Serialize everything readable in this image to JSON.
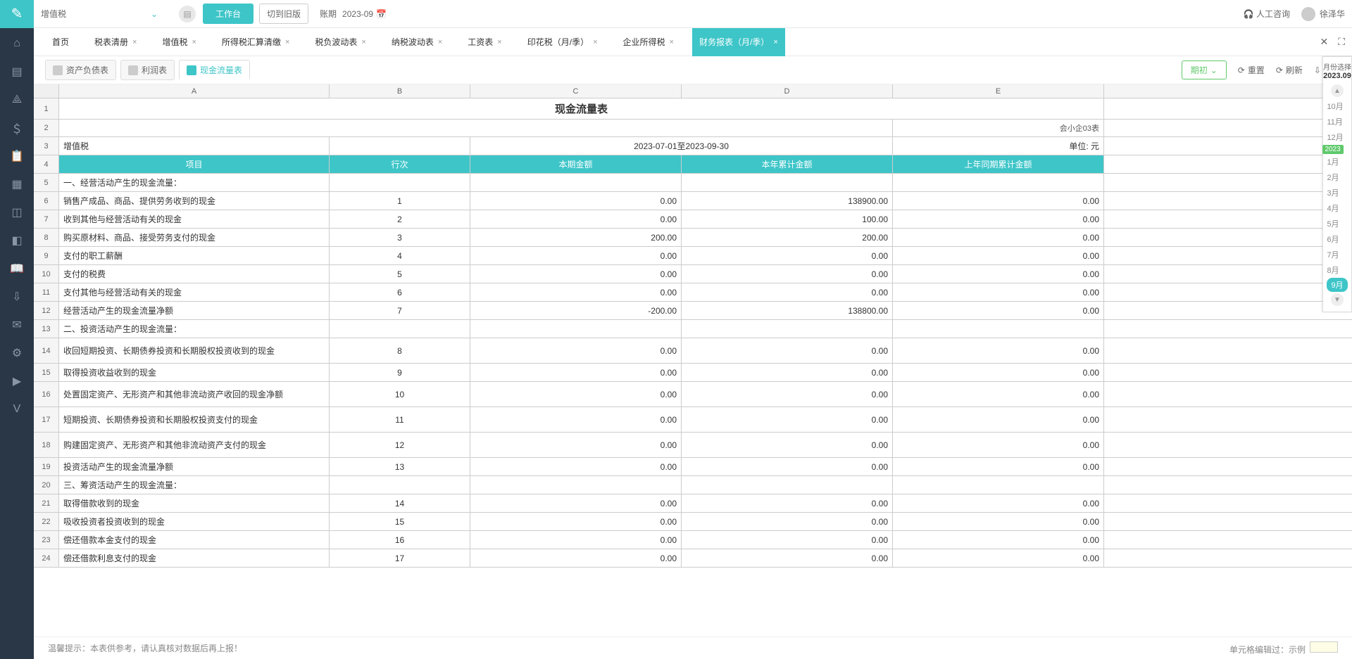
{
  "header": {
    "company": "增值税",
    "workbench": "工作台",
    "old_version": "切到旧版",
    "period_label": "账期",
    "period_value": "2023-09",
    "consult": "人工咨询",
    "username": "徐泽华"
  },
  "sidebar": {
    "icons": [
      "home",
      "doc",
      "chart",
      "money",
      "clipboard",
      "grid",
      "template",
      "dashboard",
      "ledger",
      "download",
      "inbox",
      "gear",
      "video",
      "v"
    ]
  },
  "tabs": [
    {
      "label": "首页",
      "closable": false
    },
    {
      "label": "税表清册",
      "closable": true
    },
    {
      "label": "增值税",
      "closable": true
    },
    {
      "label": "所得税汇算清缴",
      "closable": true
    },
    {
      "label": "税负波动表",
      "closable": true
    },
    {
      "label": "纳税波动表",
      "closable": true
    },
    {
      "label": "工资表",
      "closable": true
    },
    {
      "label": "印花税（月/季）",
      "closable": true
    },
    {
      "label": "企业所得税",
      "closable": true
    },
    {
      "label": "财务报表（月/季）",
      "closable": true,
      "active": true
    }
  ],
  "subtabs": [
    {
      "label": "资产负债表"
    },
    {
      "label": "利润表"
    },
    {
      "label": "现金流量表",
      "active": true
    }
  ],
  "toolbar": {
    "period_first": "期初",
    "reset": "重置",
    "refresh": "刷新",
    "download": "下载"
  },
  "columns": [
    "A",
    "B",
    "C",
    "D",
    "E"
  ],
  "col_widths": {
    "A": "384px",
    "B": "200px",
    "C": "300px",
    "D": "300px",
    "E": "300px"
  },
  "title": "现金流量表",
  "meta": {
    "left": "增值税",
    "top_right": "会小企03表",
    "period": "2023-07-01至2023-09-30",
    "unit": "单位: 元"
  },
  "headers": [
    "项目",
    "行次",
    "本期金额",
    "本年累计金额",
    "上年同期累计金额"
  ],
  "rows": [
    {
      "n": 5,
      "a": "一、经营活动产生的现金流量：",
      "b": "",
      "c": "",
      "d": "",
      "e": ""
    },
    {
      "n": 6,
      "a": "销售产成品、商品、提供劳务收到的现金",
      "b": "1",
      "c": "0.00",
      "d": "138900.00",
      "e": "0.00"
    },
    {
      "n": 7,
      "a": "收到其他与经营活动有关的现金",
      "b": "2",
      "c": "0.00",
      "d": "100.00",
      "e": "0.00"
    },
    {
      "n": 8,
      "a": "购买原材料、商品、接受劳务支付的现金",
      "b": "3",
      "c": "200.00",
      "d": "200.00",
      "e": "0.00"
    },
    {
      "n": 9,
      "a": "支付的职工薪酬",
      "b": "4",
      "c": "0.00",
      "d": "0.00",
      "e": "0.00"
    },
    {
      "n": 10,
      "a": "支付的税费",
      "b": "5",
      "c": "0.00",
      "d": "0.00",
      "e": "0.00"
    },
    {
      "n": 11,
      "a": "支付其他与经营活动有关的现金",
      "b": "6",
      "c": "0.00",
      "d": "0.00",
      "e": "0.00"
    },
    {
      "n": 12,
      "a": "经营活动产生的现金流量净额",
      "b": "7",
      "c": "-200.00",
      "d": "138800.00",
      "e": "0.00"
    },
    {
      "n": 13,
      "a": "二、投资活动产生的现金流量：",
      "b": "",
      "c": "",
      "d": "",
      "e": ""
    },
    {
      "n": 14,
      "a": "收回短期投资、长期债券投资和长期股权投资收到的现金",
      "b": "8",
      "c": "0.00",
      "d": "0.00",
      "e": "0.00",
      "tall": true
    },
    {
      "n": 15,
      "a": "取得投资收益收到的现金",
      "b": "9",
      "c": "0.00",
      "d": "0.00",
      "e": "0.00"
    },
    {
      "n": 16,
      "a": "处置固定资产、无形资产和其他非流动资产收回的现金净额",
      "b": "10",
      "c": "0.00",
      "d": "0.00",
      "e": "0.00",
      "tall": true
    },
    {
      "n": 17,
      "a": "短期投资、长期债券投资和长期股权投资支付的现金",
      "b": "11",
      "c": "0.00",
      "d": "0.00",
      "e": "0.00",
      "tall": true
    },
    {
      "n": 18,
      "a": "购建固定资产、无形资产和其他非流动资产支付的现金",
      "b": "12",
      "c": "0.00",
      "d": "0.00",
      "e": "0.00",
      "tall": true
    },
    {
      "n": 19,
      "a": "投资活动产生的现金流量净额",
      "b": "13",
      "c": "0.00",
      "d": "0.00",
      "e": "0.00"
    },
    {
      "n": 20,
      "a": "三、筹资活动产生的现金流量：",
      "b": "",
      "c": "",
      "d": "",
      "e": ""
    },
    {
      "n": 21,
      "a": "取得借款收到的现金",
      "b": "14",
      "c": "0.00",
      "d": "0.00",
      "e": "0.00"
    },
    {
      "n": 22,
      "a": "吸收投资者投资收到的现金",
      "b": "15",
      "c": "0.00",
      "d": "0.00",
      "e": "0.00"
    },
    {
      "n": 23,
      "a": "偿还借款本金支付的现金",
      "b": "16",
      "c": "0.00",
      "d": "0.00",
      "e": "0.00"
    },
    {
      "n": 24,
      "a": "偿还借款利息支付的现金",
      "b": "17",
      "c": "0.00",
      "d": "0.00",
      "e": "0.00"
    }
  ],
  "footer": {
    "tip": "温馨提示：本表供参考，请认真核对数据后再上报！",
    "edited_label": "单元格编辑过：示例"
  },
  "month_panel": {
    "title": "月份选择",
    "current": "2023.09",
    "prev_months": [
      "10月",
      "11月",
      "12月"
    ],
    "year_badge": "2023",
    "months": [
      "1月",
      "2月",
      "3月",
      "4月",
      "5月",
      "6月",
      "7月",
      "8月",
      "9月"
    ],
    "active": "9月"
  },
  "colors": {
    "primary": "#3ec5c8",
    "sidebar": "#2a3746",
    "green": "#5fc96b"
  }
}
